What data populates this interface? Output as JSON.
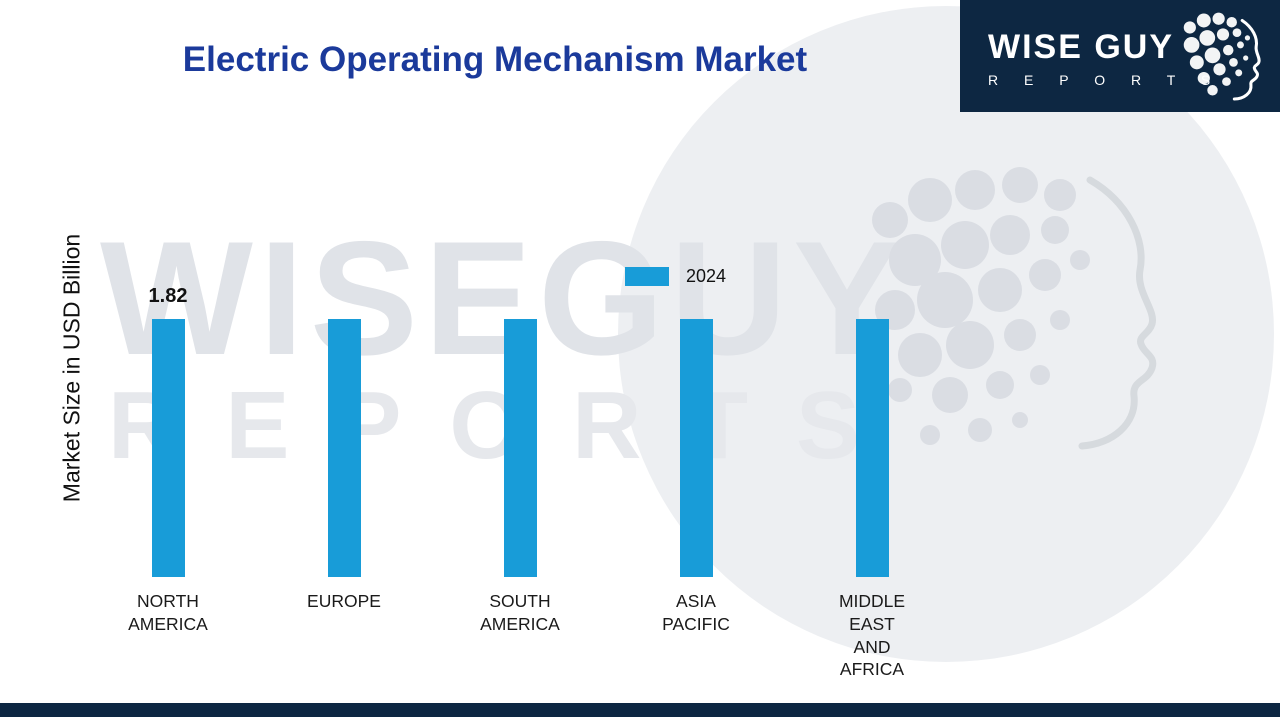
{
  "header": {
    "logo": {
      "line1": "WISE GUY",
      "line2": "R E P O R T S"
    }
  },
  "watermark": {
    "line1": "WISEGUY",
    "line2": "REPORTS"
  },
  "chart_data": {
    "type": "bar",
    "title": "Electric Operating Mechanism Market",
    "ylabel": "Market Size in USD Billion",
    "categories": [
      "NORTH AMERICA",
      "EUROPE",
      "SOUTH AMERICA",
      "ASIA PACIFIC",
      "MIDDLE EAST AND AFRICA"
    ],
    "categories_display": [
      "NORTH\nAMERICA",
      "EUROPE",
      "SOUTH\nAMERICA",
      "ASIA\nPACIFIC",
      "MIDDLE\nEAST\nAND\nAFRICA"
    ],
    "values": [
      1.82,
      1.82,
      1.82,
      1.82,
      1.82
    ],
    "value_labels": [
      "1.82",
      "",
      "",
      "",
      ""
    ],
    "ylim": [
      0,
      2
    ],
    "grid": false,
    "bar_color": "#189cd8",
    "legend_position": "upper-right-of-plot",
    "legend": [
      {
        "label": "2024",
        "color": "#189cd8"
      }
    ]
  },
  "colors": {
    "title_blue": "#1b3a9b",
    "navy": "#0d2742",
    "bar_cyan": "#189cd8",
    "watermark_gray": "#e0e3e8"
  }
}
